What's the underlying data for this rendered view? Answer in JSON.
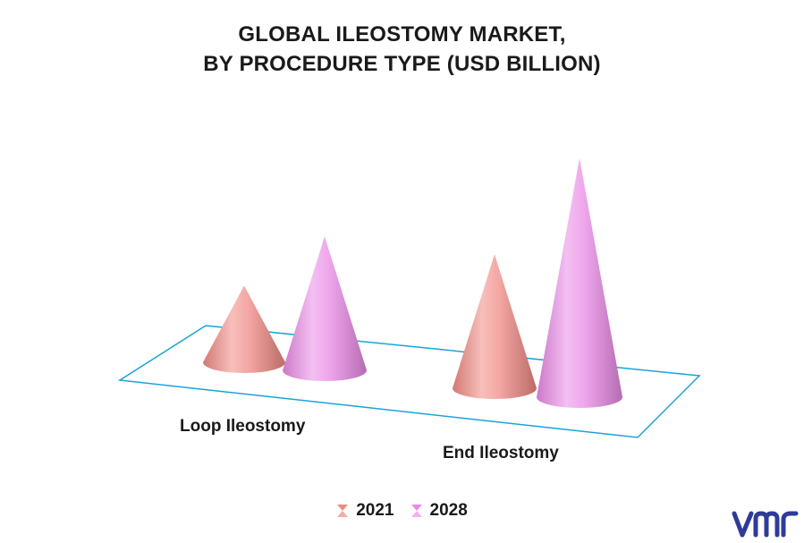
{
  "chart_data": {
    "type": "bar",
    "title_lines": [
      "GLOBAL ILEOSTOMY MARKET,",
      "BY PROCEDURE TYPE (USD BILLION)"
    ],
    "categories": [
      "Loop Ileostomy",
      "End Ileostomy"
    ],
    "series": [
      {
        "name": "2021",
        "values": [
          0.8,
          1.4
        ],
        "color": "#f08a84"
      },
      {
        "name": "2028",
        "values": [
          1.4,
          2.5
        ],
        "color": "#e98ae6"
      }
    ],
    "ylim": [
      0,
      2.6
    ],
    "grid": false,
    "legend_position": "bottom"
  },
  "brand": {
    "logo_name": "vmr-logo",
    "logo_color": "#2f3b9a",
    "logo_text": "vmr"
  }
}
